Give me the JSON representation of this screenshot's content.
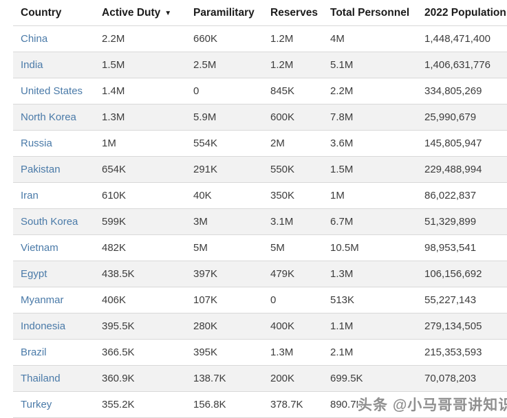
{
  "table": {
    "sort_indicator": "▼",
    "columns": [
      {
        "key": "country",
        "label": "Country",
        "sorted": false
      },
      {
        "key": "active_duty",
        "label": "Active Duty",
        "sorted": true
      },
      {
        "key": "paramilitary",
        "label": "Paramilitary",
        "sorted": false
      },
      {
        "key": "reserves",
        "label": "Reserves",
        "sorted": false
      },
      {
        "key": "total",
        "label": "Total Personnel",
        "sorted": false
      },
      {
        "key": "population",
        "label": "2022 Population",
        "sorted": false
      }
    ],
    "rows": [
      {
        "country": "China",
        "active_duty": "2.2M",
        "paramilitary": "660K",
        "reserves": "1.2M",
        "total": "4M",
        "population": "1,448,471,400"
      },
      {
        "country": "India",
        "active_duty": "1.5M",
        "paramilitary": "2.5M",
        "reserves": "1.2M",
        "total": "5.1M",
        "population": "1,406,631,776"
      },
      {
        "country": "United States",
        "active_duty": "1.4M",
        "paramilitary": "0",
        "reserves": "845K",
        "total": "2.2M",
        "population": "334,805,269"
      },
      {
        "country": "North Korea",
        "active_duty": "1.3M",
        "paramilitary": "5.9M",
        "reserves": "600K",
        "total": "7.8M",
        "population": "25,990,679"
      },
      {
        "country": "Russia",
        "active_duty": "1M",
        "paramilitary": "554K",
        "reserves": "2M",
        "total": "3.6M",
        "population": "145,805,947"
      },
      {
        "country": "Pakistan",
        "active_duty": "654K",
        "paramilitary": "291K",
        "reserves": "550K",
        "total": "1.5M",
        "population": "229,488,994"
      },
      {
        "country": "Iran",
        "active_duty": "610K",
        "paramilitary": "40K",
        "reserves": "350K",
        "total": "1M",
        "population": "86,022,837"
      },
      {
        "country": "South Korea",
        "active_duty": "599K",
        "paramilitary": "3M",
        "reserves": "3.1M",
        "total": "6.7M",
        "population": "51,329,899"
      },
      {
        "country": "Vietnam",
        "active_duty": "482K",
        "paramilitary": "5M",
        "reserves": "5M",
        "total": "10.5M",
        "population": "98,953,541"
      },
      {
        "country": "Egypt",
        "active_duty": "438.5K",
        "paramilitary": "397K",
        "reserves": "479K",
        "total": "1.3M",
        "population": "106,156,692"
      },
      {
        "country": "Myanmar",
        "active_duty": "406K",
        "paramilitary": "107K",
        "reserves": "0",
        "total": "513K",
        "population": "55,227,143"
      },
      {
        "country": "Indonesia",
        "active_duty": "395.5K",
        "paramilitary": "280K",
        "reserves": "400K",
        "total": "1.1M",
        "population": "279,134,505"
      },
      {
        "country": "Brazil",
        "active_duty": "366.5K",
        "paramilitary": "395K",
        "reserves": "1.3M",
        "total": "2.1M",
        "population": "215,353,593"
      },
      {
        "country": "Thailand",
        "active_duty": "360.9K",
        "paramilitary": "138.7K",
        "reserves": "200K",
        "total": "699.5K",
        "population": "70,078,203"
      },
      {
        "country": "Turkey",
        "active_duty": "355.2K",
        "paramilitary": "156.8K",
        "reserves": "378.7K",
        "total": "890.7K",
        "population": ""
      }
    ]
  },
  "watermark": {
    "text": "头条 @小马哥哥讲知识"
  },
  "colors": {
    "link_blue": "#4a7aa8",
    "header_text": "#1b1b1b",
    "value_text": "#3c3c3c",
    "alt_row_bg": "#f2f2f2",
    "row_border": "#d8d8d8",
    "watermark_gray": "#8f8f8f"
  }
}
